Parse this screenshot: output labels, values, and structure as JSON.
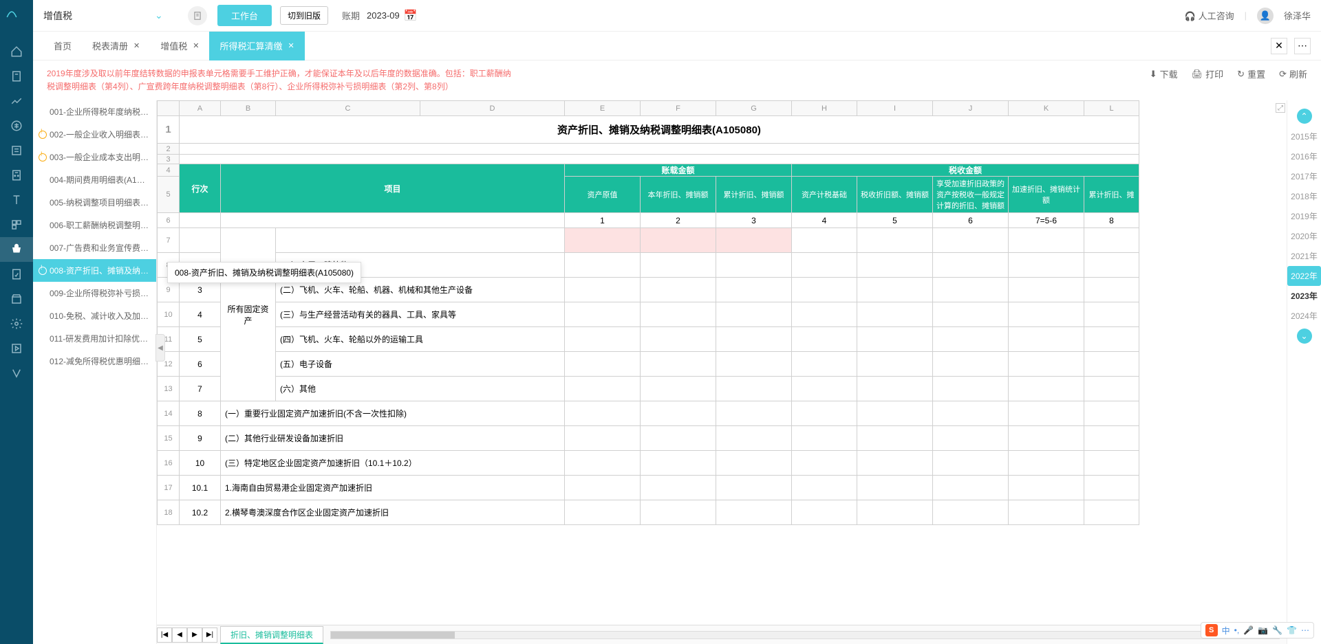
{
  "header": {
    "tax_type": "增值税",
    "workbench_btn": "工作台",
    "switch_btn": "切到旧版",
    "period_label": "账期",
    "period_value": "2023-09",
    "consult": "人工咨询",
    "username": "徐泽华"
  },
  "tabs": {
    "items": [
      {
        "label": "首页",
        "closable": false
      },
      {
        "label": "税表清册",
        "closable": true
      },
      {
        "label": "增值税",
        "closable": true
      },
      {
        "label": "所得税汇算清缴",
        "closable": true,
        "active": true
      }
    ]
  },
  "warning_text": "2019年度涉及取以前年度结转数据的申报表单元格需要手工维护正确，才能保证本年及以后年度的数据准确。包括：职工薪酬纳税调整明细表（第4列）、广宣费跨年度纳税调整明细表（第8行）、企业所得税弥补亏损明细表（第2列、第8列）",
  "toolbar": {
    "download": "下载",
    "print": "打印",
    "reset": "重置",
    "refresh": "刷新"
  },
  "form_list": [
    {
      "label": "001-企业所得税年度纳税申..."
    },
    {
      "label": "002-一般企业收入明细表(A1...",
      "warning": true
    },
    {
      "label": "003-一般企业成本支出明细...",
      "warning": true
    },
    {
      "label": "004-期间费用明细表(A1040..."
    },
    {
      "label": "005-纳税调整项目明细表(A1..."
    },
    {
      "label": "006-职工薪酬纳税调整明细..."
    },
    {
      "label": "007-广告费和业务宣传费跨..."
    },
    {
      "label": "008-资产折旧、摊销及纳税...",
      "warning": true,
      "active": true
    },
    {
      "label": "009-企业所得税弥补亏损明..."
    },
    {
      "label": "010-免税、减计收入及加计..."
    },
    {
      "label": "011-研发费用加计扣除优惠..."
    },
    {
      "label": "012-减免所得税优惠明细表(..."
    }
  ],
  "tooltip": "008-资产折旧、摊销及纳税调整明细表(A105080)",
  "sheet": {
    "title": "资产折旧、摊销及纳税调整明细表(A105080)",
    "columns": [
      "A",
      "B",
      "C",
      "D",
      "E",
      "F",
      "G",
      "H",
      "I",
      "J",
      "K",
      "L"
    ],
    "header_row1": {
      "line_no": "行次",
      "item": "项目",
      "book": "账载金额",
      "tax": "税收金额"
    },
    "header_row2": [
      "资产原值",
      "本年折旧、摊销额",
      "累计折旧、摊销额",
      "资产计税基础",
      "税收折旧额、摊销额",
      "享受加速折旧政策的资产按税收一般规定计算的折旧、摊销额",
      "加速折旧、摊销统计额",
      "累计折旧、摊"
    ],
    "num_row": [
      "1",
      "2",
      "3",
      "4",
      "5",
      "6",
      "7=5-6",
      "8"
    ],
    "category_label": "所有固定资产",
    "rows": [
      {
        "r": 7,
        "n": "",
        "item": "",
        "pink": true
      },
      {
        "r": 8,
        "n": "2",
        "item": "(一）房屋、建筑物"
      },
      {
        "r": 9,
        "n": "3",
        "item": "(二）飞机、火车、轮船、机器、机械和其他生产设备"
      },
      {
        "r": 10,
        "n": "4",
        "item": "(三）与生产经营活动有关的器具、工具、家具等"
      },
      {
        "r": 11,
        "n": "5",
        "item": "(四）飞机、火车、轮船以外的运输工具"
      },
      {
        "r": 12,
        "n": "6",
        "item": "(五）电子设备"
      },
      {
        "r": 13,
        "n": "7",
        "item": "(六）其他"
      },
      {
        "r": 14,
        "n": "8",
        "item": "(一）重要行业固定资产加速折旧(不含一次性扣除)"
      },
      {
        "r": 15,
        "n": "9",
        "item": "(二）其他行业研发设备加速折旧"
      },
      {
        "r": 16,
        "n": "10",
        "item": "(三）特定地区企业固定资产加速折旧（10.1＋10.2）"
      },
      {
        "r": 17,
        "n": "10.1",
        "item": "1.海南自由贸易港企业固定资产加速折旧"
      },
      {
        "r": 18,
        "n": "10.2",
        "item": "2.横琴粤澳深度合作区企业固定资产加速折旧"
      }
    ],
    "bottom_tab": "折旧、摊销调整明细表"
  },
  "years": [
    "2015年",
    "2016年",
    "2017年",
    "2018年",
    "2019年",
    "2020年",
    "2021年",
    "2022年",
    "2023年",
    "2024年"
  ],
  "active_year": "2022年",
  "current_year": "2023年",
  "ime": {
    "logo": "S",
    "items": [
      "中",
      "•,",
      "🎤",
      "📷",
      "🔧",
      "👕",
      "⋯"
    ]
  }
}
